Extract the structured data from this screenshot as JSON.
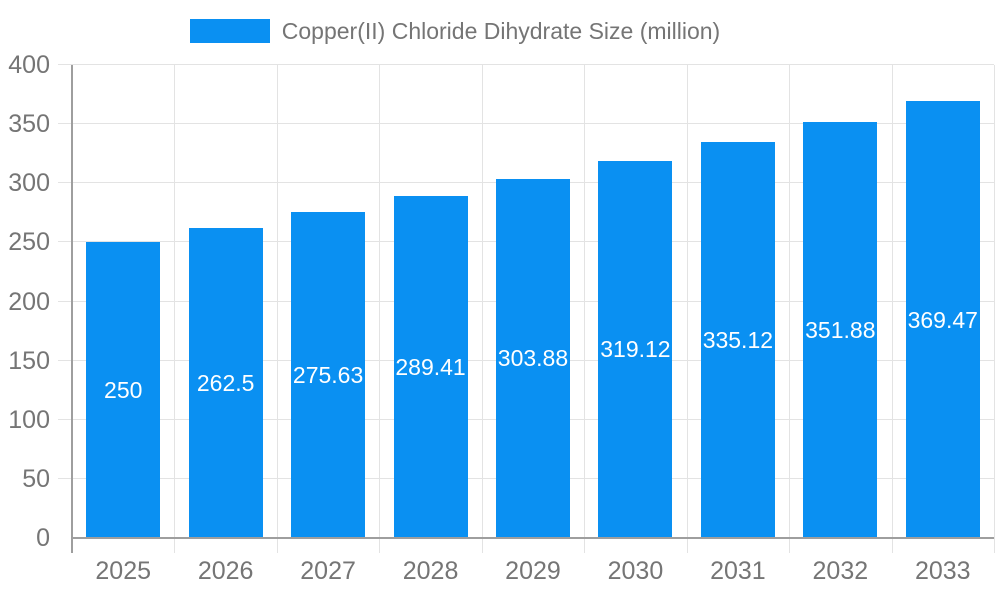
{
  "chart_data": {
    "type": "bar",
    "legend_label": "Copper(II) Chloride Dihydrate Size (million)",
    "categories": [
      "2025",
      "2026",
      "2027",
      "2028",
      "2029",
      "2030",
      "2031",
      "2032",
      "2033"
    ],
    "values": [
      250,
      262.5,
      275.63,
      289.41,
      303.88,
      319.12,
      335.12,
      351.88,
      369.47
    ],
    "value_labels": [
      "250",
      "262.5",
      "275.63",
      "289.41",
      "303.88",
      "319.12",
      "335.12",
      "351.88",
      "369.47"
    ],
    "xlabel": "",
    "ylabel": "",
    "ylim": [
      0,
      400
    ],
    "y_ticks": [
      0,
      50,
      100,
      150,
      200,
      250,
      300,
      350,
      400
    ],
    "grid": "horizontal and vertical, light gray",
    "legend_position": "top-center",
    "value_label_position": "centered inside bar, white",
    "colors": {
      "bar": "#0a90f2",
      "grid": "#e3e3e3",
      "axis": "#9e9e9e",
      "tick": "#d6d6d6",
      "text": "#757575",
      "value_label": "#ffffff",
      "background": "#ffffff"
    }
  }
}
